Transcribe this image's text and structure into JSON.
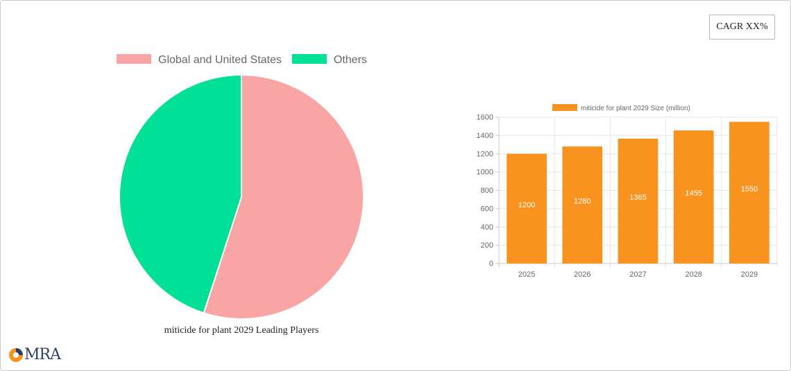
{
  "cagr_label": "CAGR XX%",
  "logo_text": "MRA",
  "chart_data": [
    {
      "type": "pie",
      "title": "miticide for plant 2029 Leading Players",
      "legend_position": "top",
      "series": [
        {
          "name": "Global and United States",
          "value": 55,
          "color": "#f9a5a5"
        },
        {
          "name": "Others",
          "value": 45,
          "color": "#00e096"
        }
      ]
    },
    {
      "type": "bar",
      "categories": [
        "2025",
        "2026",
        "2027",
        "2028",
        "2029"
      ],
      "series": [
        {
          "name": "miticide for plant 2029 Size (million)",
          "values": [
            1200,
            1280,
            1365,
            1455,
            1550
          ],
          "color": "#f7931e"
        }
      ],
      "ylim": [
        0,
        1600
      ],
      "yticks": [
        0,
        200,
        400,
        600,
        800,
        1000,
        1200,
        1400,
        1600
      ],
      "grid": true,
      "legend_position": "top",
      "data_labels": true
    }
  ]
}
